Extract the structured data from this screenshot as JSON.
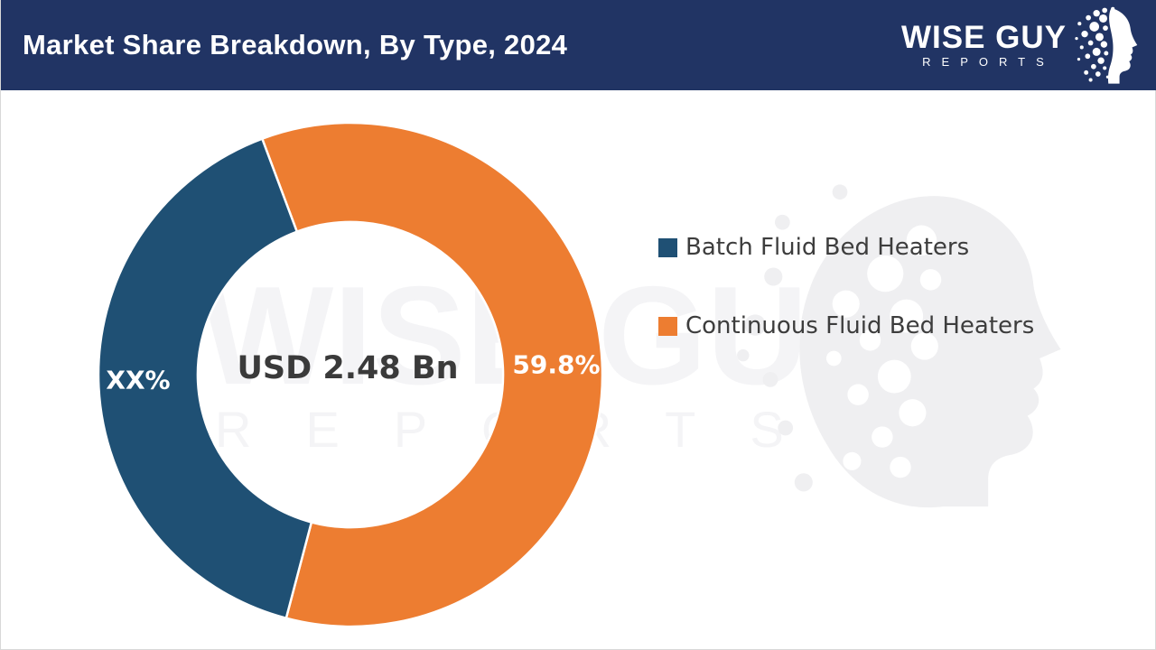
{
  "header": {
    "title": "Market Share Breakdown, By Type, 2024",
    "logo": {
      "line1": "WISE GUY",
      "line2": "REPORTS"
    }
  },
  "watermark": {
    "line1": "WISE GUY",
    "line2": "REPORTS"
  },
  "colors": {
    "header_bg": "#213464",
    "blue": "#1F5074",
    "orange": "#ED7D31",
    "center_text": "#3A3A3A",
    "legend_text": "#3D3D3D",
    "watermark_gray": "#F4F4F6",
    "watermark_face_gray": "#EFEFF1"
  },
  "chart_data": {
    "type": "pie",
    "donut": true,
    "title": "Market Share Breakdown, By Type, 2024",
    "center_label": "USD 2.48 Bn",
    "start_angle_deg": -20.5,
    "inner_radius_ratio": 0.606,
    "segments": [
      {
        "name": "Continuous Fluid Bed Heaters",
        "value": 59.8,
        "label": "59.8%",
        "color": "#ED7D31"
      },
      {
        "name": "Batch Fluid Bed Heaters",
        "value": 40.2,
        "label": "XX%",
        "color": "#1F5074"
      }
    ],
    "legend": {
      "position": "right",
      "items": [
        {
          "label": "Batch Fluid Bed Heaters",
          "color": "#1F5074"
        },
        {
          "label": "Continuous Fluid Bed Heaters",
          "color": "#ED7D31"
        }
      ]
    }
  }
}
